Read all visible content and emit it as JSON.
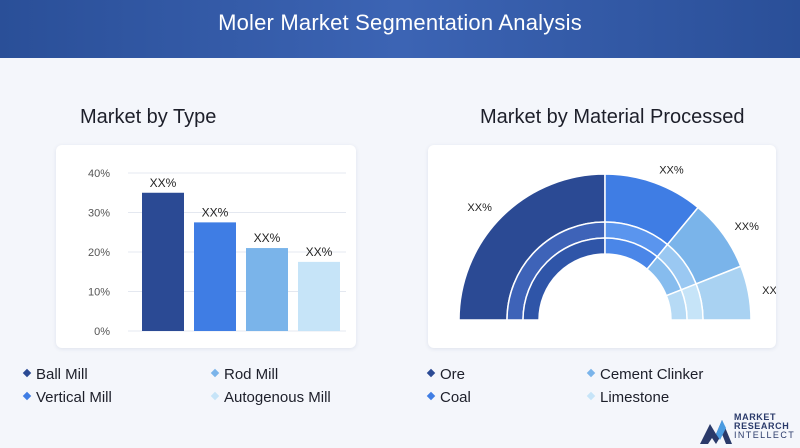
{
  "header": {
    "title": "Moler Market Segmentation Analysis"
  },
  "left": {
    "title": "Market by Type",
    "legend": [
      {
        "label": "Ball Mill",
        "color": "#2b4a94"
      },
      {
        "label": "Rod Mill",
        "color": "#7ab4ea"
      },
      {
        "label": "Vertical Mill",
        "color": "#3f7de4"
      },
      {
        "label": "Autogenous Mill",
        "color": "#c6e4f8"
      }
    ]
  },
  "right": {
    "title": "Market by Material Processed",
    "legend": [
      {
        "label": "Ore",
        "color": "#2b4a94"
      },
      {
        "label": "Cement Clinker",
        "color": "#7ab4ea"
      },
      {
        "label": "Coal",
        "color": "#3f7de4"
      },
      {
        "label": "Limestone",
        "color": "#c6e4f8"
      }
    ]
  },
  "logo": {
    "line1": "MARKET",
    "line2": "RESEARCH",
    "line3": "INTELLECT"
  },
  "chart_data": [
    {
      "type": "bar",
      "title": "Market by Type",
      "categories": [
        "Ball Mill",
        "Vertical Mill",
        "Rod Mill",
        "Autogenous Mill"
      ],
      "values": [
        35,
        27.5,
        21,
        17.5
      ],
      "data_labels": [
        "XX%",
        "XX%",
        "XX%",
        "XX%"
      ],
      "colors": [
        "#2b4a94",
        "#3f7de4",
        "#7ab4ea",
        "#c6e4f8"
      ],
      "y_ticks": [
        "0%",
        "10%",
        "20%",
        "30%",
        "40%"
      ],
      "ylim": [
        0,
        40
      ],
      "grid": true
    },
    {
      "type": "pie",
      "variant": "semicircle-donut",
      "title": "Market by Material Processed",
      "categories": [
        "Ore",
        "Coal",
        "Cement Clinker",
        "Limestone"
      ],
      "values": [
        50,
        22,
        16,
        12
      ],
      "data_labels": [
        "XX%",
        "XX%",
        "XX%",
        "XX%"
      ],
      "colors": [
        "#2b4a94",
        "#3f7de4",
        "#7ab4ea",
        "#c6e4f8"
      ],
      "ring_shades": [
        [
          "#2b4a94",
          "#3e63b8",
          "#2f55a8"
        ],
        [
          "#3f7de4",
          "#5a95ee",
          "#4a86e8"
        ],
        [
          "#7ab4ea",
          "#9ac8f2",
          "#86bcee"
        ],
        [
          "#a9d2f2",
          "#c6e4f8",
          "#b6daf5"
        ]
      ]
    }
  ]
}
